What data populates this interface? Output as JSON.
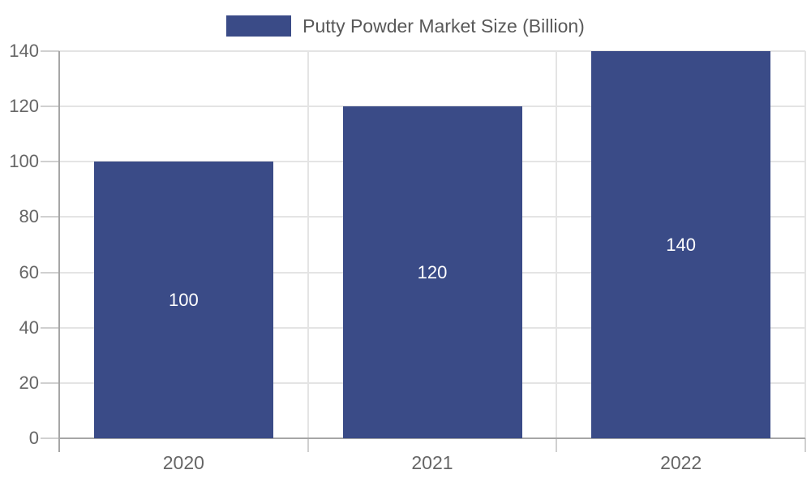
{
  "chart_data": {
    "type": "bar",
    "title": "Putty Powder Market Size (Billion)",
    "legend": [
      "Putty Powder Market Size (Billion)"
    ],
    "legend_position": "top",
    "categories": [
      "2020",
      "2021",
      "2022"
    ],
    "values": [
      100,
      120,
      140
    ],
    "bar_labels": [
      "100",
      "120",
      "140"
    ],
    "xlabel": "",
    "ylabel": "",
    "ylim": [
      0,
      140
    ],
    "ytick_step": 20,
    "ytick_labels": [
      "0",
      "20",
      "40",
      "60",
      "80",
      "100",
      "120",
      "140"
    ],
    "grid": true,
    "colors": {
      "bar": "#3A4B87",
      "bar_label_text": "#FFFFFF",
      "gridline": "#E4E4E4",
      "tick": "#D0D0D0",
      "axis_line": "#A6A6A6",
      "axis_text": "#666666",
      "legend_text": "#595959"
    }
  }
}
